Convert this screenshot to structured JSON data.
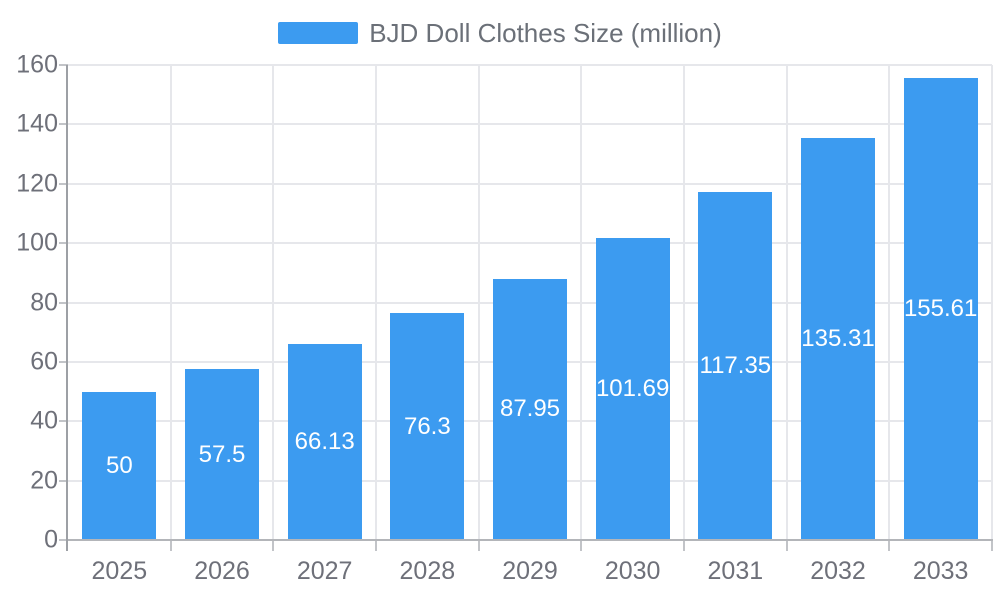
{
  "chart_data": {
    "type": "bar",
    "title": "BJD Doll Clothes Size (million)",
    "legend_entries": [
      "BJD Doll Clothes Size (million)"
    ],
    "legend_position": "top-center",
    "categories": [
      "2025",
      "2026",
      "2027",
      "2028",
      "2029",
      "2030",
      "2031",
      "2032",
      "2033"
    ],
    "series": [
      {
        "name": "BJD Doll Clothes Size (million)",
        "values": [
          50,
          57.5,
          66.13,
          76.3,
          87.95,
          101.69,
          117.35,
          135.31,
          155.61
        ]
      }
    ],
    "value_labels": [
      "50",
      "57.5",
      "66.13",
      "76.3",
      "87.95",
      "101.69",
      "117.35",
      "135.31",
      "155.61"
    ],
    "value_label_position": "inside-center",
    "xlabel": "",
    "ylabel": "",
    "ylim": [
      0,
      160
    ],
    "y_ticks": [
      "0",
      "20",
      "40",
      "60",
      "80",
      "100",
      "120",
      "140",
      "160"
    ],
    "grid": "horizontal-and-vertical",
    "colors": {
      "bar": "#3C9BF0",
      "bar_label_text": "#FFFFFF",
      "axis_text": "#6E7079",
      "legend_text": "#6B7078",
      "grid_line": "#E6E7EB",
      "y_axis_line": "#9DA0A5",
      "x_axis_line": "#B3B5B9",
      "tick": "#C2C4C8",
      "background": "#FFFFFF"
    }
  }
}
